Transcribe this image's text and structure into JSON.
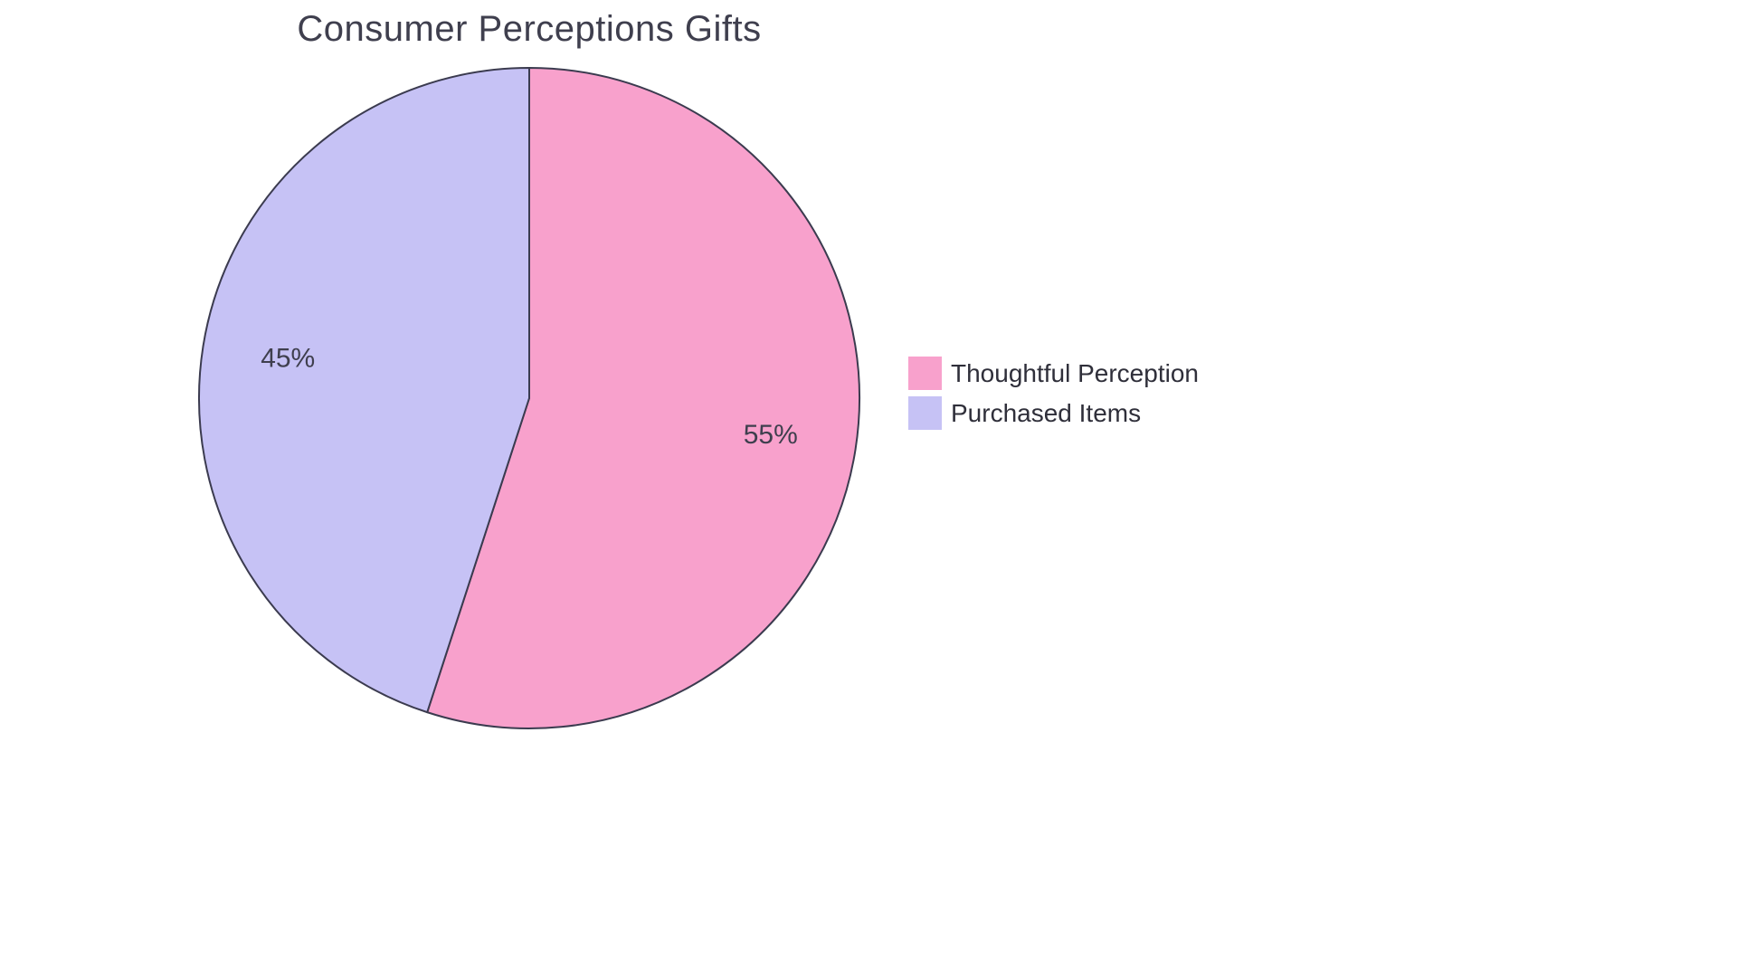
{
  "chart_data": {
    "type": "pie",
    "title": "Consumer Perceptions Gifts",
    "slices": [
      {
        "label": "Thoughtful Perception",
        "value": 55,
        "pct_label": "55%",
        "color": "#F8A1CC"
      },
      {
        "label": "Purchased Items",
        "value": 45,
        "pct_label": "45%",
        "color": "#C6C2F5"
      }
    ],
    "start_angle_deg": 0,
    "direction": "clockwise",
    "stroke_color": "#3B3B4F",
    "stroke_width": 2,
    "percent_label_color": "#3F3F4E",
    "title_color": "#3F3F4E",
    "legend_position": "right",
    "legend_text_color": "#2F2F3A",
    "background_color": "#FFFFFF"
  }
}
